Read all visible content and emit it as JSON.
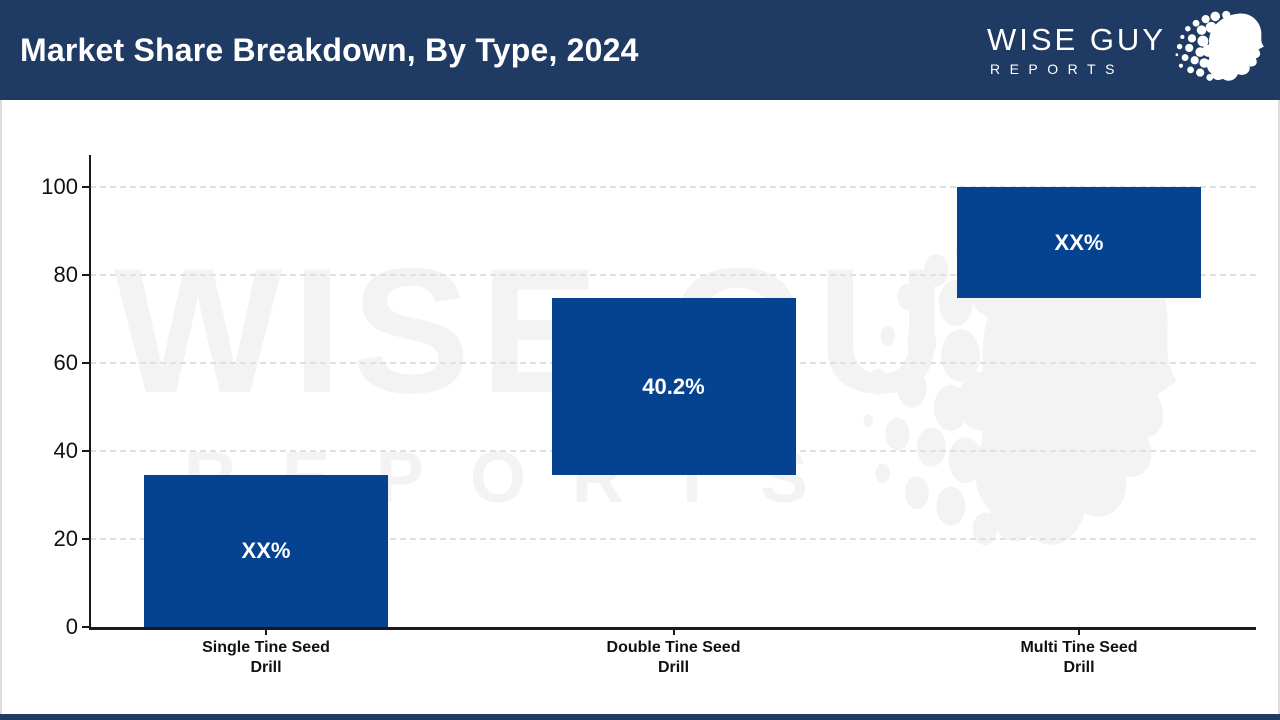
{
  "header": {
    "title": "Market Share Breakdown, By Type, 2024",
    "logo": {
      "name": "WISE GUY",
      "sub": "REPORTS",
      "face_icon": "head-profile-dots"
    }
  },
  "watermark": {
    "line1": "WISE GUY",
    "line2": "REPORTS",
    "face_icon": "head-profile-dots"
  },
  "colors": {
    "header_bg": "#1f3a63",
    "footer_bg": "#1f3a63",
    "bar": "#05428f",
    "bar_label": "#ffffff",
    "grid": "#e0e0e0",
    "axis": "#1a1a1a"
  },
  "chart_data": {
    "type": "bar",
    "subtype": "floating-waterfall-columns",
    "title": "Market Share Breakdown, By Type, 2024",
    "categories": [
      {
        "line1": "Single Tine Seed",
        "line2": "Drill"
      },
      {
        "line1": "Double Tine Seed",
        "line2": "Drill"
      },
      {
        "line1": "Multi Tine Seed",
        "line2": "Drill"
      }
    ],
    "segments": [
      {
        "category": "Single Tine Seed Drill",
        "start": 0,
        "end": 34.5,
        "label": "XX%"
      },
      {
        "category": "Double Tine Seed Drill",
        "start": 34.5,
        "end": 74.7,
        "label": "40.2%"
      },
      {
        "category": "Multi Tine Seed Drill",
        "start": 74.7,
        "end": 100,
        "label": "XX%"
      }
    ],
    "ylabel": "",
    "xlabel": "",
    "ylim": [
      0,
      100
    ],
    "yticks": [
      0,
      20,
      40,
      60,
      80,
      100
    ],
    "grid": "horizontal-dashed",
    "legend": "none"
  }
}
